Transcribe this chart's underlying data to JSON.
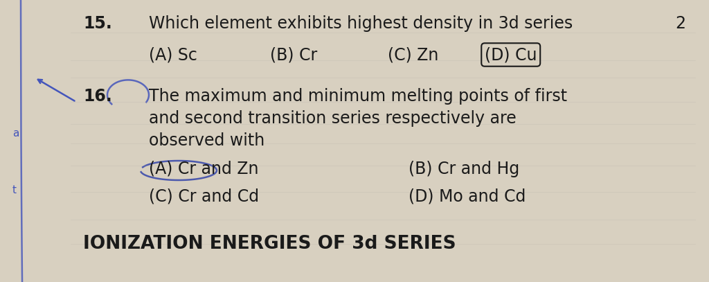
{
  "bg_color": "#d8d0c0",
  "page_color": "#e8e4dc",
  "text_color": "#1a1a1a",
  "q15_number": "15.",
  "q15_text": "Which element exhibits highest density in 3d series",
  "q15_options": [
    "(A) Sc",
    "(B) Cr",
    "(C) Zn",
    "(D) Cu"
  ],
  "q16_number": "16.",
  "q16_line1": "The maximum and minimum melting points of first",
  "q16_line2": "and second transition series respectively are",
  "q16_line3": "observed with",
  "q16_optA": "(A) Cr and Zn",
  "q16_optB": "(B) Cr and Hg",
  "q16_optC": "(C) Cr and Cd",
  "q16_optD": "(D) Mo and Cd",
  "footer": "IONIZATION ENERGIES OF 3d SERIES",
  "right_number": "2",
  "pen_color": "#4455bb",
  "pen_color2": "#3344aa"
}
